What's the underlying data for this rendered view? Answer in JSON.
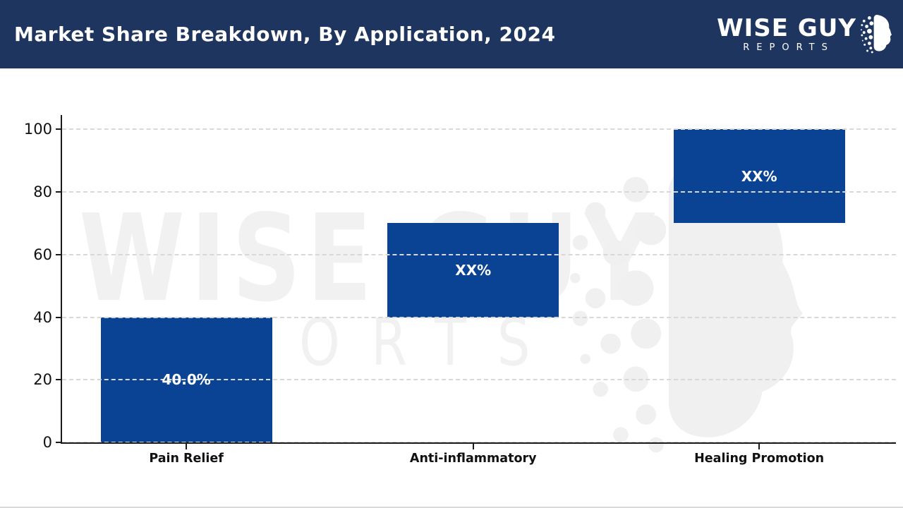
{
  "header": {
    "title": "Market Share Breakdown, By Application, 2024",
    "bg_color": "#1e3560",
    "logo": {
      "line1": "WISE GUY",
      "line2": "REPORTS"
    }
  },
  "watermark": {
    "line1": "WISE GUY",
    "line2": "REPORTS"
  },
  "chart_data": {
    "type": "bar",
    "subtype": "floating-waterfall",
    "title": "Market Share Breakdown, By Application, 2024",
    "categories": [
      "Pain Relief",
      "Anti-inflammatory",
      "Healing Promotion"
    ],
    "series": [
      {
        "name": "Market Share",
        "ranges": [
          [
            0,
            40
          ],
          [
            40,
            70
          ],
          [
            70,
            100
          ]
        ],
        "bar_labels": [
          "40.0%",
          "XX%",
          "XX%"
        ]
      }
    ],
    "yticks": [
      0,
      20,
      40,
      60,
      80,
      100
    ],
    "ylim": [
      0,
      104.6
    ],
    "xlabel": "",
    "ylabel": "",
    "grid": true,
    "grid_style": "dashed",
    "legend": false,
    "bar_color": "#0b4394",
    "bar_label_color": "#ffffff",
    "axis_color": "#1a1a1a"
  }
}
